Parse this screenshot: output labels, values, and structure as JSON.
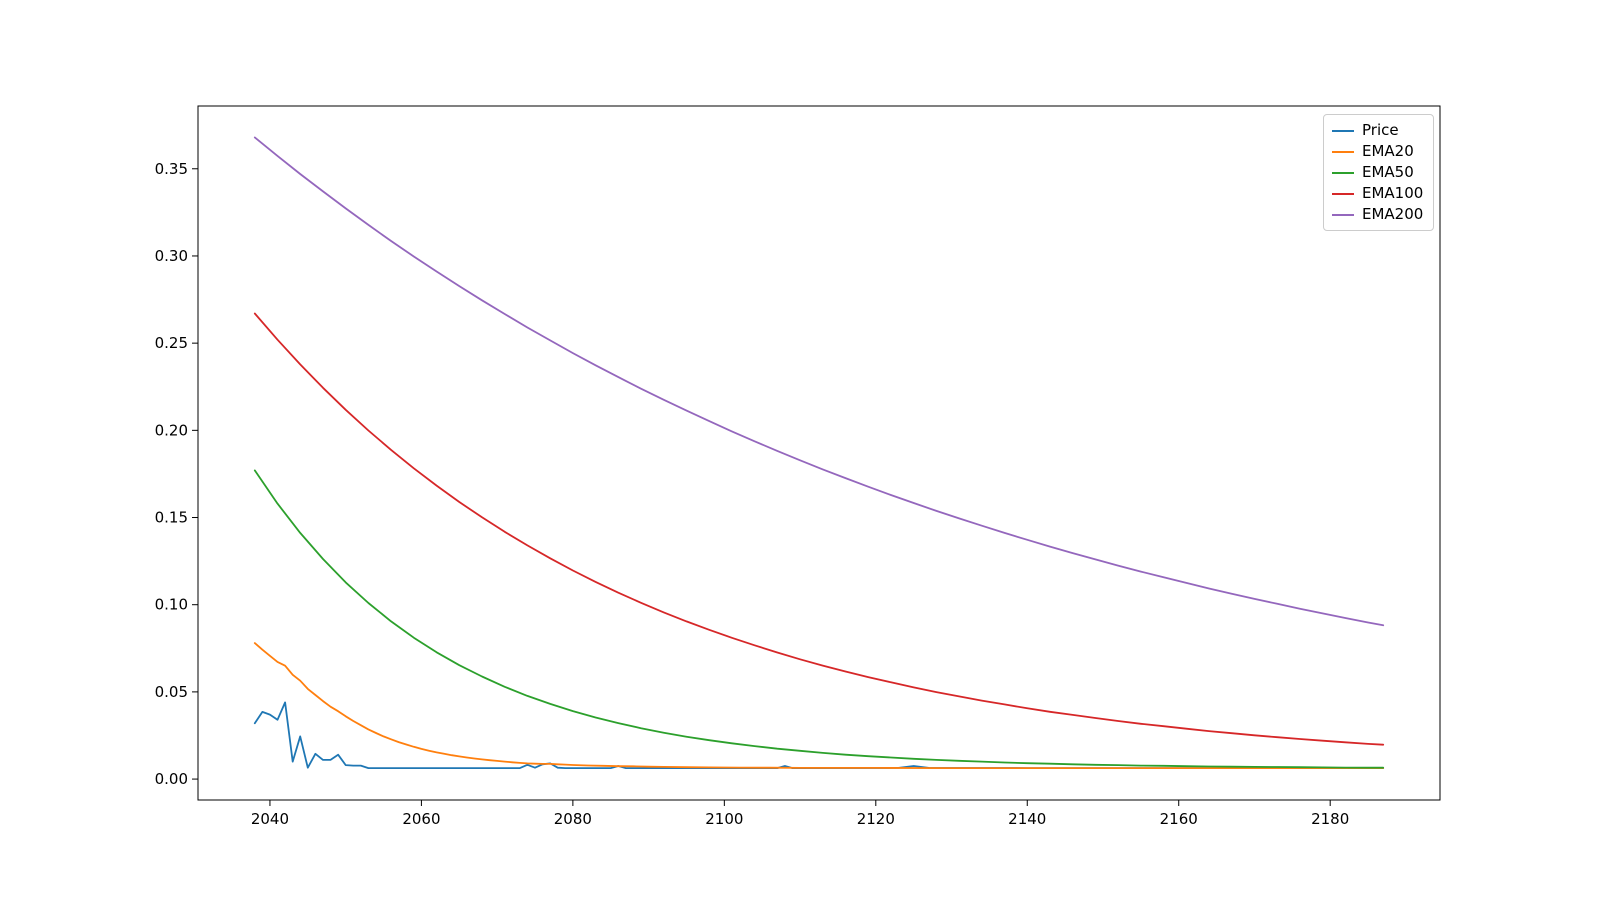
{
  "figure": {
    "background": "#ffffff",
    "plot_background": "#ffffff"
  },
  "colors": {
    "spine": "#000000",
    "tick": "#000000",
    "tick_label": "#000000",
    "legend_border": "#cccccc",
    "legend_background": "rgba(255,255,255,0.85)"
  },
  "chart_data": {
    "type": "line",
    "title": "",
    "xlabel": "",
    "ylabel": "",
    "grid": false,
    "xlim": [
      2030.5,
      2194.5
    ],
    "ylim": [
      -0.012,
      0.386
    ],
    "x_ticks": [
      2040,
      2060,
      2080,
      2100,
      2120,
      2140,
      2160,
      2180
    ],
    "x_tick_labels": [
      "2040",
      "2060",
      "2080",
      "2100",
      "2120",
      "2140",
      "2160",
      "2180"
    ],
    "y_ticks": [
      0.0,
      0.05,
      0.1,
      0.15,
      0.2,
      0.25,
      0.3,
      0.35
    ],
    "y_tick_labels": [
      "0.00",
      "0.05",
      "0.10",
      "0.15",
      "0.20",
      "0.25",
      "0.30",
      "0.35"
    ],
    "legend": {
      "position": "upper-right",
      "entries": [
        "Price",
        "EMA20",
        "EMA50",
        "EMA100",
        "EMA200"
      ]
    },
    "series": [
      {
        "name": "Price",
        "color": "#1f77b4",
        "points": [
          [
            2038,
            0.032
          ],
          [
            2039,
            0.0385
          ],
          [
            2040,
            0.037
          ],
          [
            2041,
            0.034
          ],
          [
            2042,
            0.044
          ],
          [
            2043,
            0.01
          ],
          [
            2044,
            0.0245
          ],
          [
            2045,
            0.0065
          ],
          [
            2046,
            0.0145
          ],
          [
            2047,
            0.011
          ],
          [
            2048,
            0.011
          ],
          [
            2049,
            0.014
          ],
          [
            2050,
            0.008
          ],
          [
            2051,
            0.0077
          ],
          [
            2052,
            0.0077
          ],
          [
            2053,
            0.0063
          ],
          [
            2058,
            0.0063
          ],
          [
            2065,
            0.0063
          ],
          [
            2073,
            0.0063
          ],
          [
            2074,
            0.0082
          ],
          [
            2075,
            0.0065
          ],
          [
            2076,
            0.0085
          ],
          [
            2077,
            0.009
          ],
          [
            2078,
            0.0065
          ],
          [
            2079,
            0.0063
          ],
          [
            2085,
            0.0063
          ],
          [
            2086,
            0.0075
          ],
          [
            2087,
            0.0063
          ],
          [
            2107,
            0.0063
          ],
          [
            2108,
            0.0075
          ],
          [
            2109,
            0.0063
          ],
          [
            2123,
            0.0064
          ],
          [
            2125,
            0.0075
          ],
          [
            2127,
            0.0064
          ],
          [
            2140,
            0.0063
          ],
          [
            2160,
            0.0063
          ],
          [
            2187,
            0.0063
          ]
        ]
      },
      {
        "name": "EMA20",
        "color": "#ff7f0e",
        "points": [
          [
            2038,
            0.078
          ],
          [
            2039,
            0.0742
          ],
          [
            2040,
            0.0707
          ],
          [
            2041,
            0.0672
          ],
          [
            2042,
            0.065
          ],
          [
            2043,
            0.0598
          ],
          [
            2044,
            0.0564
          ],
          [
            2045,
            0.0517
          ],
          [
            2046,
            0.0482
          ],
          [
            2047,
            0.0447
          ],
          [
            2048,
            0.0415
          ],
          [
            2049,
            0.0389
          ],
          [
            2050,
            0.036
          ],
          [
            2051,
            0.0333
          ],
          [
            2052,
            0.0309
          ],
          [
            2053,
            0.0285
          ],
          [
            2054,
            0.0264
          ],
          [
            2055,
            0.0245
          ],
          [
            2056,
            0.0228
          ],
          [
            2057,
            0.0212
          ],
          [
            2058,
            0.0198
          ],
          [
            2059,
            0.0185
          ],
          [
            2060,
            0.0173
          ],
          [
            2061,
            0.0163
          ],
          [
            2062,
            0.0153
          ],
          [
            2063,
            0.0145
          ],
          [
            2064,
            0.0137
          ],
          [
            2065,
            0.013
          ],
          [
            2066,
            0.0124
          ],
          [
            2067,
            0.0118
          ],
          [
            2068,
            0.0113
          ],
          [
            2069,
            0.0108
          ],
          [
            2070,
            0.0104
          ],
          [
            2071,
            0.01
          ],
          [
            2072,
            0.0096
          ],
          [
            2073,
            0.0093
          ],
          [
            2074,
            0.009
          ],
          [
            2075,
            0.0088
          ],
          [
            2076,
            0.0087
          ],
          [
            2077,
            0.0087
          ],
          [
            2078,
            0.0085
          ],
          [
            2079,
            0.0083
          ],
          [
            2080,
            0.0081
          ],
          [
            2082,
            0.0078
          ],
          [
            2084,
            0.0076
          ],
          [
            2086,
            0.0074
          ],
          [
            2088,
            0.0073
          ],
          [
            2090,
            0.0071
          ],
          [
            2092,
            0.007
          ],
          [
            2095,
            0.0068
          ],
          [
            2098,
            0.0067
          ],
          [
            2102,
            0.0066
          ],
          [
            2106,
            0.0065
          ],
          [
            2110,
            0.0064
          ],
          [
            2120,
            0.0064
          ],
          [
            2130,
            0.0063
          ],
          [
            2187,
            0.0063
          ]
        ]
      },
      {
        "name": "EMA50",
        "color": "#2ca02c",
        "points": [
          [
            2038,
            0.177
          ],
          [
            2041,
            0.158
          ],
          [
            2044,
            0.1412
          ],
          [
            2047,
            0.1262
          ],
          [
            2050,
            0.1128
          ],
          [
            2053,
            0.101
          ],
          [
            2056,
            0.0904
          ],
          [
            2059,
            0.0811
          ],
          [
            2062,
            0.0727
          ],
          [
            2065,
            0.0653
          ],
          [
            2068,
            0.0588
          ],
          [
            2071,
            0.0529
          ],
          [
            2074,
            0.0477
          ],
          [
            2077,
            0.0431
          ],
          [
            2080,
            0.039
          ],
          [
            2083,
            0.0353
          ],
          [
            2086,
            0.0321
          ],
          [
            2089,
            0.0292
          ],
          [
            2092,
            0.0266
          ],
          [
            2095,
            0.0243
          ],
          [
            2098,
            0.0223
          ],
          [
            2101,
            0.0205
          ],
          [
            2104,
            0.0189
          ],
          [
            2107,
            0.0174
          ],
          [
            2110,
            0.0162
          ],
          [
            2113,
            0.015
          ],
          [
            2116,
            0.014
          ],
          [
            2119,
            0.0131
          ],
          [
            2122,
            0.0124
          ],
          [
            2125,
            0.0116
          ],
          [
            2128,
            0.011
          ],
          [
            2131,
            0.0105
          ],
          [
            2134,
            0.01
          ],
          [
            2137,
            0.0095
          ],
          [
            2140,
            0.0091
          ],
          [
            2143,
            0.0088
          ],
          [
            2146,
            0.0085
          ],
          [
            2149,
            0.0082
          ],
          [
            2152,
            0.008
          ],
          [
            2155,
            0.0077
          ],
          [
            2158,
            0.0076
          ],
          [
            2161,
            0.0074
          ],
          [
            2164,
            0.0072
          ],
          [
            2167,
            0.0071
          ],
          [
            2170,
            0.007
          ],
          [
            2173,
            0.0069
          ],
          [
            2176,
            0.0068
          ],
          [
            2179,
            0.0067
          ],
          [
            2182,
            0.0066
          ],
          [
            2185,
            0.0065
          ],
          [
            2187,
            0.0065
          ]
        ]
      },
      {
        "name": "EMA100",
        "color": "#d62728",
        "points": [
          [
            2038,
            0.267
          ],
          [
            2041,
            0.252
          ],
          [
            2044,
            0.2378
          ],
          [
            2047,
            0.2244
          ],
          [
            2050,
            0.2118
          ],
          [
            2053,
            0.1999
          ],
          [
            2056,
            0.1888
          ],
          [
            2059,
            0.1782
          ],
          [
            2062,
            0.1683
          ],
          [
            2065,
            0.1589
          ],
          [
            2068,
            0.1501
          ],
          [
            2071,
            0.1418
          ],
          [
            2074,
            0.134
          ],
          [
            2077,
            0.1266
          ],
          [
            2080,
            0.1196
          ],
          [
            2083,
            0.1131
          ],
          [
            2086,
            0.1069
          ],
          [
            2089,
            0.1011
          ],
          [
            2092,
            0.0956
          ],
          [
            2095,
            0.0904
          ],
          [
            2098,
            0.0856
          ],
          [
            2101,
            0.081
          ],
          [
            2104,
            0.0767
          ],
          [
            2107,
            0.0726
          ],
          [
            2110,
            0.0687
          ],
          [
            2113,
            0.0651
          ],
          [
            2116,
            0.0617
          ],
          [
            2119,
            0.0585
          ],
          [
            2122,
            0.0555
          ],
          [
            2125,
            0.0526
          ],
          [
            2128,
            0.0499
          ],
          [
            2131,
            0.0474
          ],
          [
            2134,
            0.045
          ],
          [
            2137,
            0.0428
          ],
          [
            2140,
            0.0406
          ],
          [
            2143,
            0.0386
          ],
          [
            2146,
            0.0368
          ],
          [
            2149,
            0.035
          ],
          [
            2152,
            0.0333
          ],
          [
            2155,
            0.0317
          ],
          [
            2158,
            0.0303
          ],
          [
            2161,
            0.0289
          ],
          [
            2164,
            0.0275
          ],
          [
            2167,
            0.0263
          ],
          [
            2170,
            0.0251
          ],
          [
            2173,
            0.024
          ],
          [
            2176,
            0.023
          ],
          [
            2179,
            0.022
          ],
          [
            2182,
            0.0211
          ],
          [
            2185,
            0.0202
          ],
          [
            2187,
            0.0197
          ]
        ]
      },
      {
        "name": "EMA200",
        "color": "#9467bd",
        "points": [
          [
            2038,
            0.368
          ],
          [
            2041,
            0.3574
          ],
          [
            2044,
            0.347
          ],
          [
            2047,
            0.337
          ],
          [
            2050,
            0.3273
          ],
          [
            2053,
            0.3178
          ],
          [
            2056,
            0.3086
          ],
          [
            2059,
            0.2997
          ],
          [
            2062,
            0.2911
          ],
          [
            2065,
            0.2827
          ],
          [
            2068,
            0.2746
          ],
          [
            2071,
            0.2667
          ],
          [
            2074,
            0.259
          ],
          [
            2077,
            0.2516
          ],
          [
            2080,
            0.2443
          ],
          [
            2083,
            0.2373
          ],
          [
            2086,
            0.2305
          ],
          [
            2089,
            0.2239
          ],
          [
            2092,
            0.2175
          ],
          [
            2095,
            0.2113
          ],
          [
            2098,
            0.2053
          ],
          [
            2101,
            0.1994
          ],
          [
            2104,
            0.1937
          ],
          [
            2107,
            0.1882
          ],
          [
            2110,
            0.1828
          ],
          [
            2113,
            0.1776
          ],
          [
            2116,
            0.1726
          ],
          [
            2119,
            0.1677
          ],
          [
            2122,
            0.1629
          ],
          [
            2125,
            0.1583
          ],
          [
            2128,
            0.1538
          ],
          [
            2131,
            0.1495
          ],
          [
            2134,
            0.1453
          ],
          [
            2137,
            0.1412
          ],
          [
            2140,
            0.1372
          ],
          [
            2143,
            0.1333
          ],
          [
            2146,
            0.1296
          ],
          [
            2149,
            0.126
          ],
          [
            2152,
            0.1224
          ],
          [
            2155,
            0.119
          ],
          [
            2158,
            0.1157
          ],
          [
            2161,
            0.1125
          ],
          [
            2164,
            0.1093
          ],
          [
            2167,
            0.1063
          ],
          [
            2170,
            0.1033
          ],
          [
            2173,
            0.1005
          ],
          [
            2176,
            0.0977
          ],
          [
            2179,
            0.095
          ],
          [
            2182,
            0.0924
          ],
          [
            2185,
            0.0898
          ],
          [
            2187,
            0.0882
          ]
        ]
      }
    ]
  }
}
